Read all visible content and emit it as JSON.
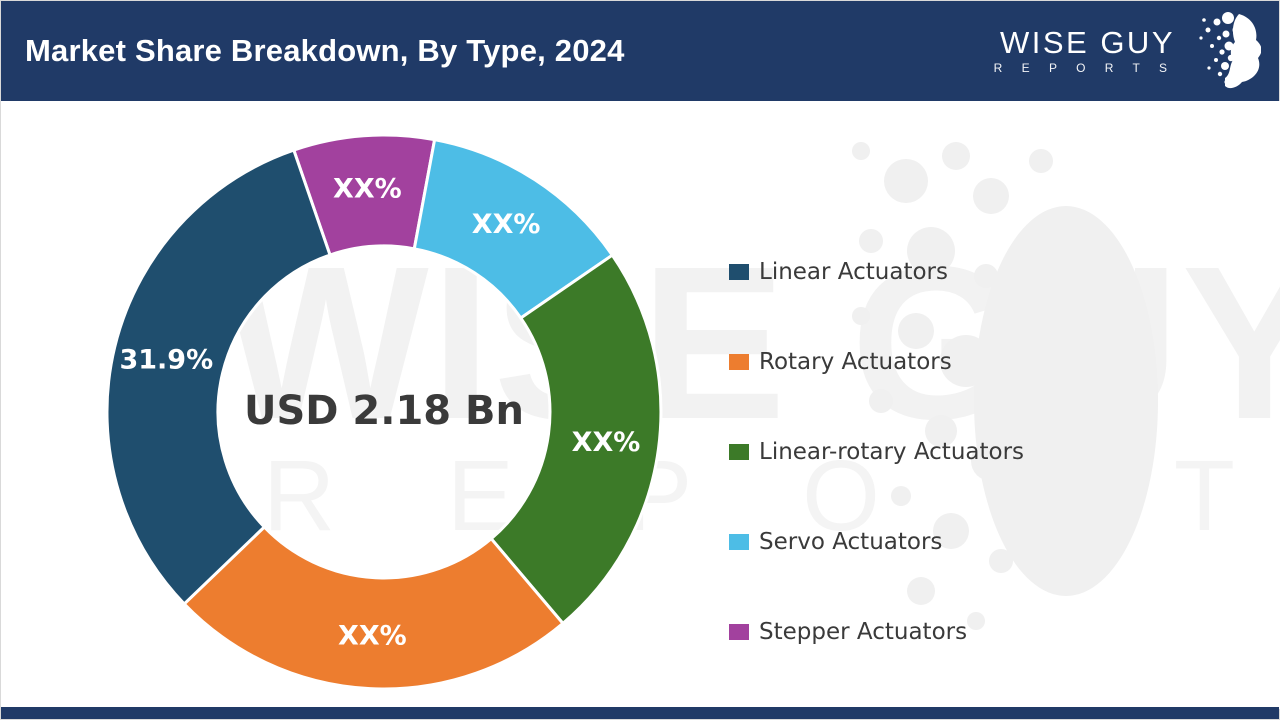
{
  "header": {
    "title": "Market Share Breakdown, By Type, 2024",
    "logo": {
      "line1": "WISE GUY",
      "line2": "R E P O R T S"
    }
  },
  "watermark": {
    "line1": "WISE GUY",
    "line2": "R E P O R T S"
  },
  "chart_data": {
    "type": "pie",
    "subtype": "donut",
    "title": "Market Share Breakdown, By Type, 2024",
    "center_label": "USD 2.18 Bn",
    "legend_position": "right",
    "start_angle_deg": -19,
    "draw_order": "clockwise-from-last-series",
    "series": [
      {
        "name": "Linear Actuators",
        "value": 31.9,
        "label": "31.9%",
        "color": "#1f4e6e"
      },
      {
        "name": "Rotary Actuators",
        "value": 24.0,
        "label": "XX%",
        "color": "#ed7d2f"
      },
      {
        "name": "Linear-rotary Actuators",
        "value": 23.4,
        "label": "XX%",
        "color": "#3c7a28"
      },
      {
        "name": "Servo Actuators",
        "value": 12.5,
        "label": "XX%",
        "color": "#4dbde6"
      },
      {
        "name": "Stepper Actuators",
        "value": 8.2,
        "label": "XX%",
        "color": "#a2419e"
      }
    ]
  },
  "colors": {
    "header_bg": "#203a67",
    "footer_bg": "#203a67",
    "slice_gap": "#ffffff",
    "center_text": "#3a3a3a",
    "legend_text": "#3a3a3a",
    "watermark": "#f2f2f2"
  }
}
